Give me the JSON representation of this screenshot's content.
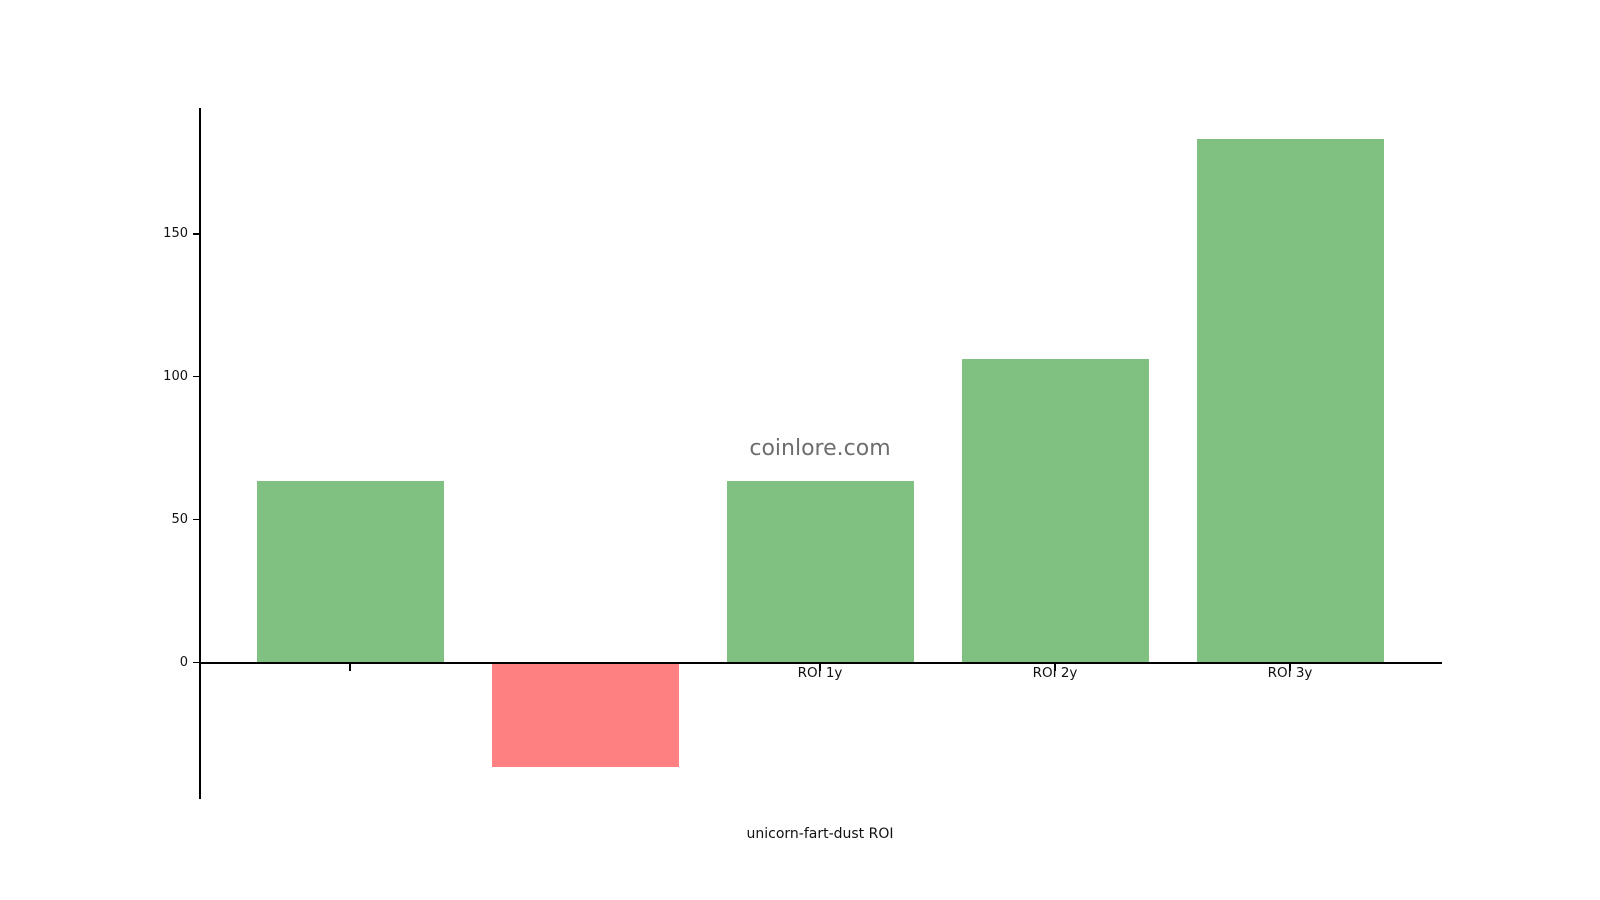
{
  "watermark": "coinlore.com",
  "chart_data": {
    "type": "bar",
    "title": "",
    "xlabel": "unicorn-fart-dust ROI",
    "ylabel": "",
    "categories": [
      "",
      "",
      "ROI 1y",
      "ROI 2y",
      "ROI 3y"
    ],
    "values": [
      63.7,
      -36.3,
      63.7,
      106.3,
      183.2
    ],
    "positive_color": "#80c080",
    "negative_color": "#ff8080",
    "ylim": [
      -47.7,
      194.0
    ],
    "yticks": [
      0,
      50,
      100,
      150
    ],
    "grid": false,
    "legend": null
  },
  "colors": {
    "axis": "#000000",
    "watermark_text": "#6e6e6e",
    "tick_text": "#111111"
  }
}
